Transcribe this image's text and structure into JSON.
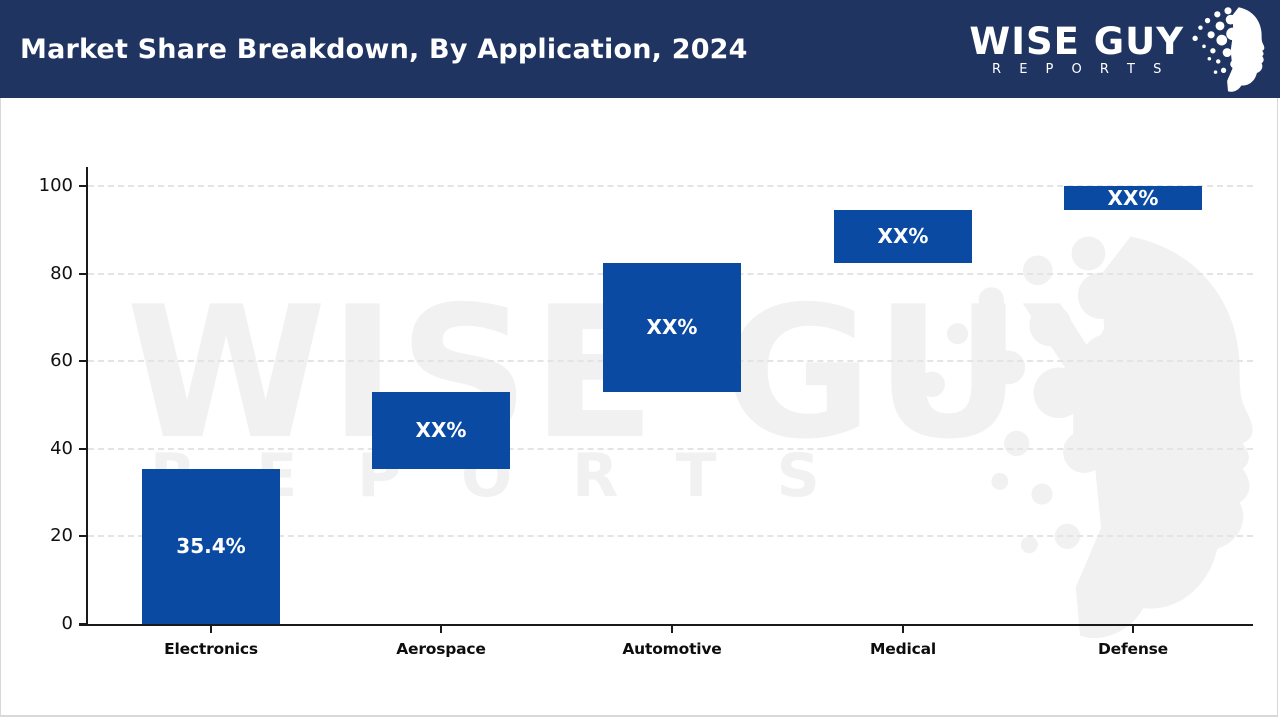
{
  "header": {
    "title": "Market Share Breakdown, By Application, 2024",
    "bg_color": "#1f3461",
    "logo": {
      "line1": "WISE GUY",
      "line2": "R E P O R T S"
    }
  },
  "watermark": {
    "line1": "WISE GUY",
    "line2": "REPORTS"
  },
  "chart_data": {
    "type": "bar",
    "subtype": "waterfall",
    "title": "Market Share Breakdown, By Application, 2024",
    "categories": [
      "Electronics",
      "Aerospace",
      "Automotive",
      "Medical",
      "Defense"
    ],
    "bars": [
      {
        "category": "Electronics",
        "start": 0,
        "end": 35.4,
        "label": "35.4%"
      },
      {
        "category": "Aerospace",
        "start": 35.4,
        "end": 53,
        "label": "XX%"
      },
      {
        "category": "Automotive",
        "start": 53,
        "end": 82.5,
        "label": "XX%"
      },
      {
        "category": "Medical",
        "start": 82.5,
        "end": 94.5,
        "label": "XX%"
      },
      {
        "category": "Defense",
        "start": 94.5,
        "end": 100,
        "label": "XX%"
      }
    ],
    "y_ticks": [
      0,
      20,
      40,
      60,
      80,
      100
    ],
    "ylim": [
      0,
      104
    ],
    "xlabel": "",
    "ylabel": "",
    "grid": "horizontal-dashed",
    "legend": "none",
    "bar_color": "#0b4aa2",
    "bar_label_color": "#ffffff",
    "axis_color": "#1a1a1a"
  }
}
